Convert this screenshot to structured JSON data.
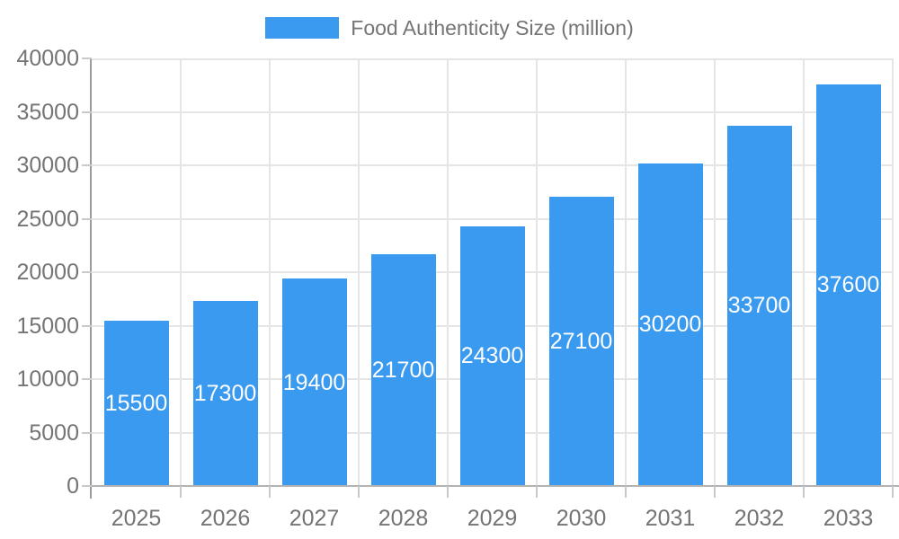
{
  "chart_data": {
    "type": "bar",
    "title": "Food Authenticity Size (million)",
    "categories": [
      "2025",
      "2026",
      "2027",
      "2028",
      "2029",
      "2030",
      "2031",
      "2032",
      "2033"
    ],
    "values": [
      15500,
      17300,
      19400,
      21700,
      24300,
      27100,
      30200,
      33700,
      37600
    ],
    "xlabel": "",
    "ylabel": "",
    "ylim": [
      0,
      40000
    ],
    "yticks": [
      0,
      5000,
      10000,
      15000,
      20000,
      25000,
      30000,
      35000,
      40000
    ],
    "grid": true,
    "legend_position": "top",
    "legend_entries": [
      "Food Authenticity Size (million)"
    ],
    "bar_labels_inside": true
  },
  "legend": {
    "label": "Food Authenticity Size (million)"
  },
  "colors": {
    "bar": "#399AF0",
    "bar_label": "#FFFFFF",
    "axis_text": "#747474",
    "gridline": "#E5E5E5",
    "y_axis_line": "#9B9B9B",
    "x_axis_line": "#B3B3B3",
    "tick": "#C9C9C9",
    "background": "#FFFFFF"
  }
}
